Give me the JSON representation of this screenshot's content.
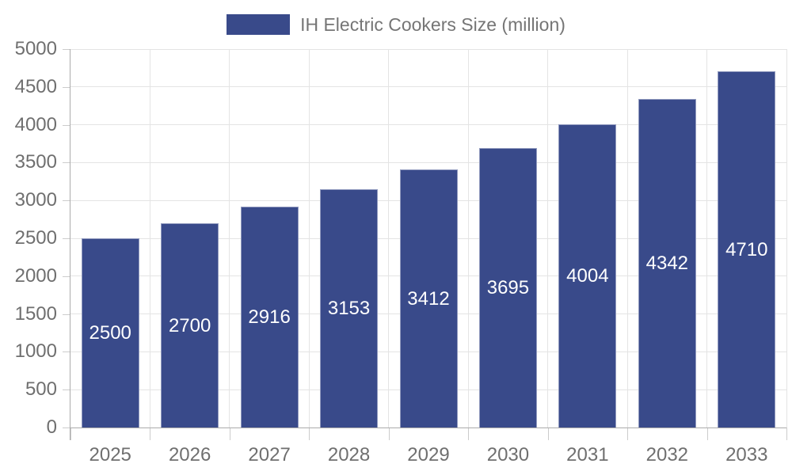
{
  "chart_data": {
    "type": "bar",
    "legend": "IH Electric Cookers Size (million)",
    "categories": [
      "2025",
      "2026",
      "2027",
      "2028",
      "2029",
      "2030",
      "2031",
      "2032",
      "2033"
    ],
    "values": [
      2500,
      2700,
      2916,
      3153,
      3412,
      3695,
      4004,
      4342,
      4710
    ],
    "yticks": [
      0,
      500,
      1000,
      1500,
      2000,
      2500,
      3000,
      3500,
      4000,
      4500,
      5000
    ],
    "ylim": [
      0,
      5000
    ],
    "grid": true,
    "legend_position": "top-center",
    "colors": {
      "bar": "#394A8A",
      "bar_label": "#FFFFFF",
      "axis_text": "#6F6F6F",
      "legend_text": "#757575",
      "gridline": "#E4E4E4",
      "axis_line": "#ABABAB",
      "tick": "#CCCCCC",
      "background": "#FFFFFF"
    }
  }
}
